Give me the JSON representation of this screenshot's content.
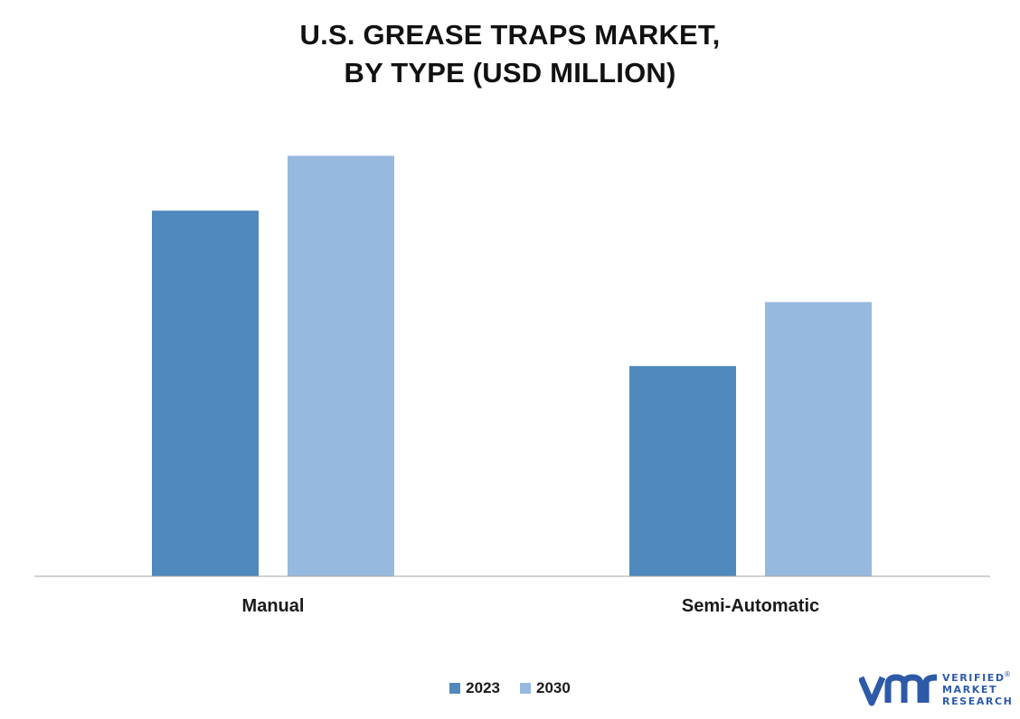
{
  "title_lines": [
    "U.S. GREASE TRAPS MARKET,",
    "BY TYPE (USD MILLION)"
  ],
  "chart_data": {
    "type": "bar",
    "title": "U.S. GREASE TRAPS MARKET, BY TYPE (USD MILLION)",
    "categories": [
      "Manual",
      "Semi-Automatic"
    ],
    "series": [
      {
        "name": "2023",
        "values": [
          80,
          46
        ],
        "color": "#4f89bd"
      },
      {
        "name": "2030",
        "values": [
          92,
          60
        ],
        "color": "#98b9df"
      }
    ],
    "ylim": [
      0,
      100
    ],
    "grid": false,
    "legend": "bottom-center"
  },
  "logo": {
    "lines": [
      "VERIFIED",
      "MARKET",
      "RESEARCH"
    ],
    "registered_mark": "®",
    "color": "#2d5aa8",
    "icon": "vmr-logo-icon"
  }
}
